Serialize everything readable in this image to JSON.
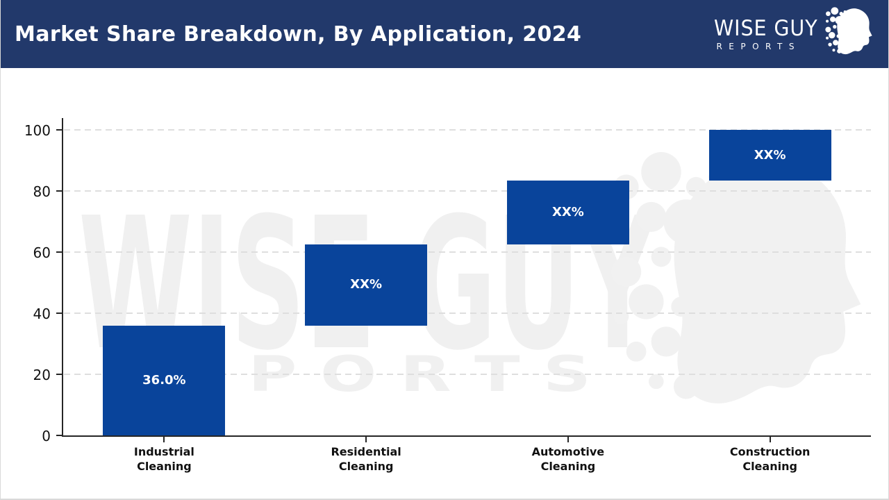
{
  "header": {
    "title": "Market Share Breakdown, By Application, 2024",
    "bg_color": "#22396b",
    "logo": {
      "name": "WISE GUY",
      "subtitle": "REPORTS"
    }
  },
  "watermark": {
    "title": "WISE GUY",
    "subtitle": "R E P O R T S",
    "color": "#f0f0f0"
  },
  "chart_data": {
    "type": "bar",
    "variant": "waterfall",
    "title": "Market Share Breakdown, By Application, 2024",
    "categories": [
      {
        "line1": "Industrial",
        "line2": "Cleaning"
      },
      {
        "line1": "Residential",
        "line2": "Cleaning"
      },
      {
        "line1": "Automotive",
        "line2": "Cleaning"
      },
      {
        "line1": "Construction",
        "line2": "Cleaning"
      }
    ],
    "segments": [
      {
        "category": "Industrial Cleaning",
        "start": 0,
        "end": 36.0,
        "value_label": "36.0%"
      },
      {
        "category": "Residential Cleaning",
        "start": 36.0,
        "end": 62.5,
        "value_label": "XX%"
      },
      {
        "category": "Automotive Cleaning",
        "start": 62.5,
        "end": 83.3,
        "value_label": "XX%"
      },
      {
        "category": "Construction Cleaning",
        "start": 83.3,
        "end": 100.0,
        "value_label": "XX%"
      }
    ],
    "ylim": [
      0,
      100
    ],
    "yticks": [
      0,
      20,
      40,
      60,
      80,
      100
    ],
    "bar_color": "#09449b",
    "bar_label_color": "#ffffff",
    "grid": {
      "axis": "y",
      "style": "dashed",
      "color": "#dedede"
    },
    "axis_color": "#262626",
    "legend": "none"
  }
}
